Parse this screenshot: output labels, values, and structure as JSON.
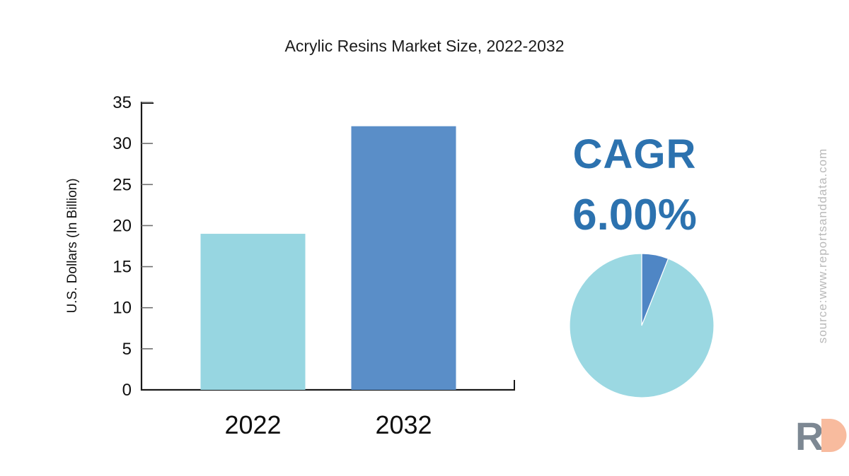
{
  "page": {
    "source": "source:www.reportsanddata.com",
    "logo_letter": "R",
    "background_color": "#ffffff"
  },
  "cagr": {
    "label": "CAGR",
    "value": "6.00%",
    "color": "#2c72af"
  },
  "chart_data": [
    {
      "type": "bar",
      "title": "Acrylic Resins Market Size, 2022-2032",
      "categories": [
        "2022",
        "2032"
      ],
      "values": [
        19,
        32.1
      ],
      "bar_colors": [
        "#97d6e1",
        "#5a8ec8"
      ],
      "xlabel": "",
      "ylabel": "U.S. Dollars (In Billion)",
      "ylim": [
        0,
        35
      ],
      "yticks": [
        0,
        5,
        10,
        15,
        20,
        25,
        30,
        35
      ],
      "grid": false,
      "legend": false
    },
    {
      "type": "pie",
      "slices": [
        {
          "name": "cagr-slice",
          "value": 6,
          "color": "#4f86c5"
        },
        {
          "name": "remainder-slice",
          "value": 94,
          "color": "#9bd8e2"
        }
      ],
      "start_angle": "12-oclock",
      "direction": "clockwise"
    }
  ]
}
